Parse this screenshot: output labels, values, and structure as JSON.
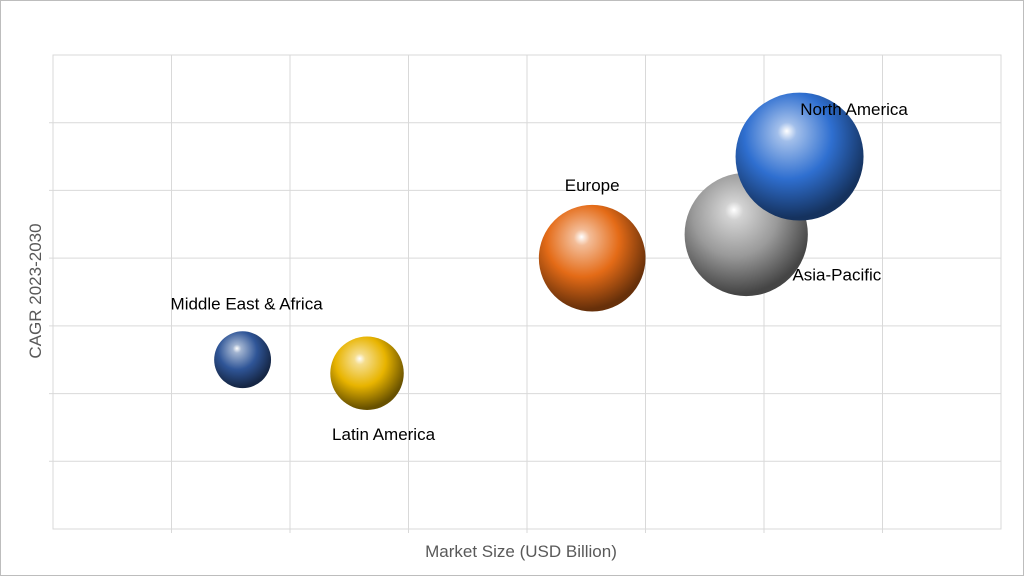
{
  "chart_data": {
    "type": "bubble",
    "title": "",
    "xlabel": "Market Size (USD Billion)",
    "ylabel": "CAGR 2023-2030",
    "xlim": [
      0,
      8
    ],
    "ylim": [
      0,
      7
    ],
    "x_ticks_visible": false,
    "y_ticks_visible": false,
    "grid": true,
    "legend": "none",
    "series": [
      {
        "label": "Middle East & Africa",
        "x": 1.6,
        "y": 2.5,
        "size": 0.24,
        "color": "#2f5597",
        "label_pos": "above"
      },
      {
        "label": "Latin America",
        "x": 2.65,
        "y": 2.3,
        "size": 0.31,
        "color": "#e8b400",
        "label_pos": "below"
      },
      {
        "label": "Europe",
        "x": 4.55,
        "y": 4.0,
        "size": 0.45,
        "color": "#e46b17",
        "label_pos": "above"
      },
      {
        "label": "Asia-Pacific",
        "x": 5.85,
        "y": 4.35,
        "size": 0.52,
        "color": "#9a9a9a",
        "label_pos": "below-right"
      },
      {
        "label": "North America",
        "x": 6.3,
        "y": 5.5,
        "size": 0.54,
        "color": "#2f6fd0",
        "label_pos": "above-right"
      }
    ]
  }
}
